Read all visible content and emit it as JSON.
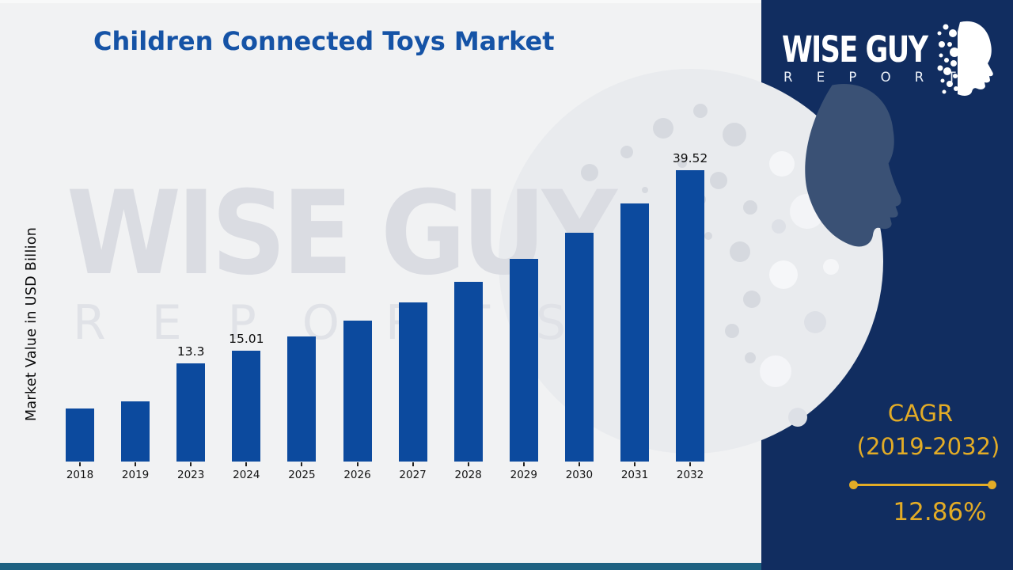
{
  "title": "Children Connected Toys Market",
  "brand": {
    "logo_line1": "WISE GUY",
    "logo_line2": "R E P O R T S",
    "watermark_line1": "WISE GUY",
    "watermark_line2": "REPORTS"
  },
  "cagr": {
    "heading": "CAGR",
    "range": "(2019-2032)",
    "value": "12.86%"
  },
  "colors": {
    "bar_blue": "#0c4a9e",
    "title_blue": "#1553a6",
    "panel_navy": "#112d60",
    "accent_gold": "#e3ac26",
    "footer_teal": "#1e6181"
  },
  "chart_data": {
    "type": "bar",
    "title": "Children Connected Toys Market",
    "categories": [
      "2018",
      "2019",
      "2023",
      "2024",
      "2025",
      "2026",
      "2027",
      "2028",
      "2029",
      "2030",
      "2031",
      "2032"
    ],
    "values": [
      7.25,
      8.18,
      13.3,
      15.01,
      16.94,
      19.13,
      21.59,
      24.37,
      27.5,
      31.04,
      35.03,
      39.52
    ],
    "data_labels": [
      "",
      "",
      "13.3",
      "15.01",
      "",
      "",
      "",
      "",
      "",
      "",
      "",
      "39.52"
    ],
    "xlabel": "",
    "ylabel": "Market Value in USD Billion",
    "ylim": [
      0,
      42
    ],
    "grid": false,
    "legend": null,
    "bar_color": "#0c4a9e"
  }
}
